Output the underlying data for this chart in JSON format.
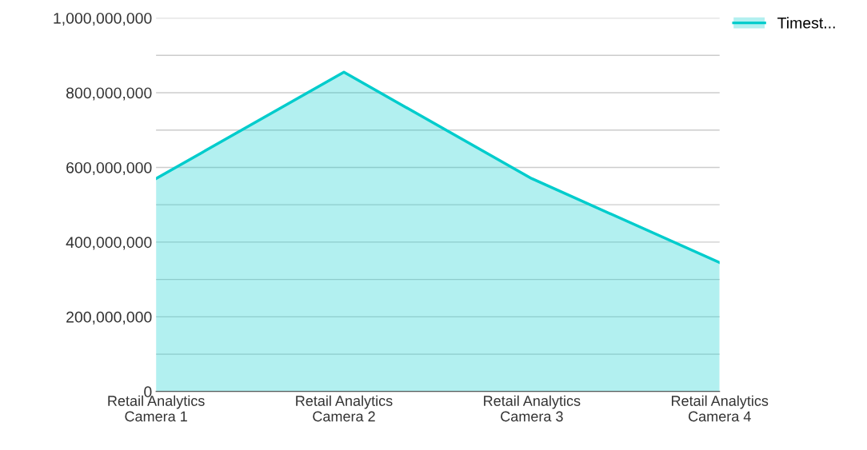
{
  "chart_data": {
    "type": "area",
    "categories": [
      "Retail Analytics\nCamera 1",
      "Retail Analytics\nCamera 2",
      "Retail Analytics\nCamera 3",
      "Retail Analytics\nCamera 4"
    ],
    "series": [
      {
        "name": "Timest...",
        "color": "#00cccc",
        "values": [
          570000000,
          855000000,
          570000000,
          345000000
        ]
      }
    ],
    "ylim": [
      0,
      1000000000
    ],
    "yticks": [
      0,
      {
        "value": 100000000,
        "label": null
      },
      {
        "value": 200000000,
        "label": "200,000,000"
      },
      {
        "value": 300000000,
        "label": null
      },
      {
        "value": 400000000,
        "label": "400,000,000"
      },
      {
        "value": 500000000,
        "label": null
      },
      {
        "value": 600000000,
        "label": "600,000,000"
      },
      {
        "value": 700000000,
        "label": null
      },
      {
        "value": 800000000,
        "label": "800,000,000"
      },
      {
        "value": 900000000,
        "label": null
      },
      {
        "value": 1000000000,
        "label": "1,000,000,000"
      }
    ],
    "grid": "y",
    "legend": "top right"
  }
}
